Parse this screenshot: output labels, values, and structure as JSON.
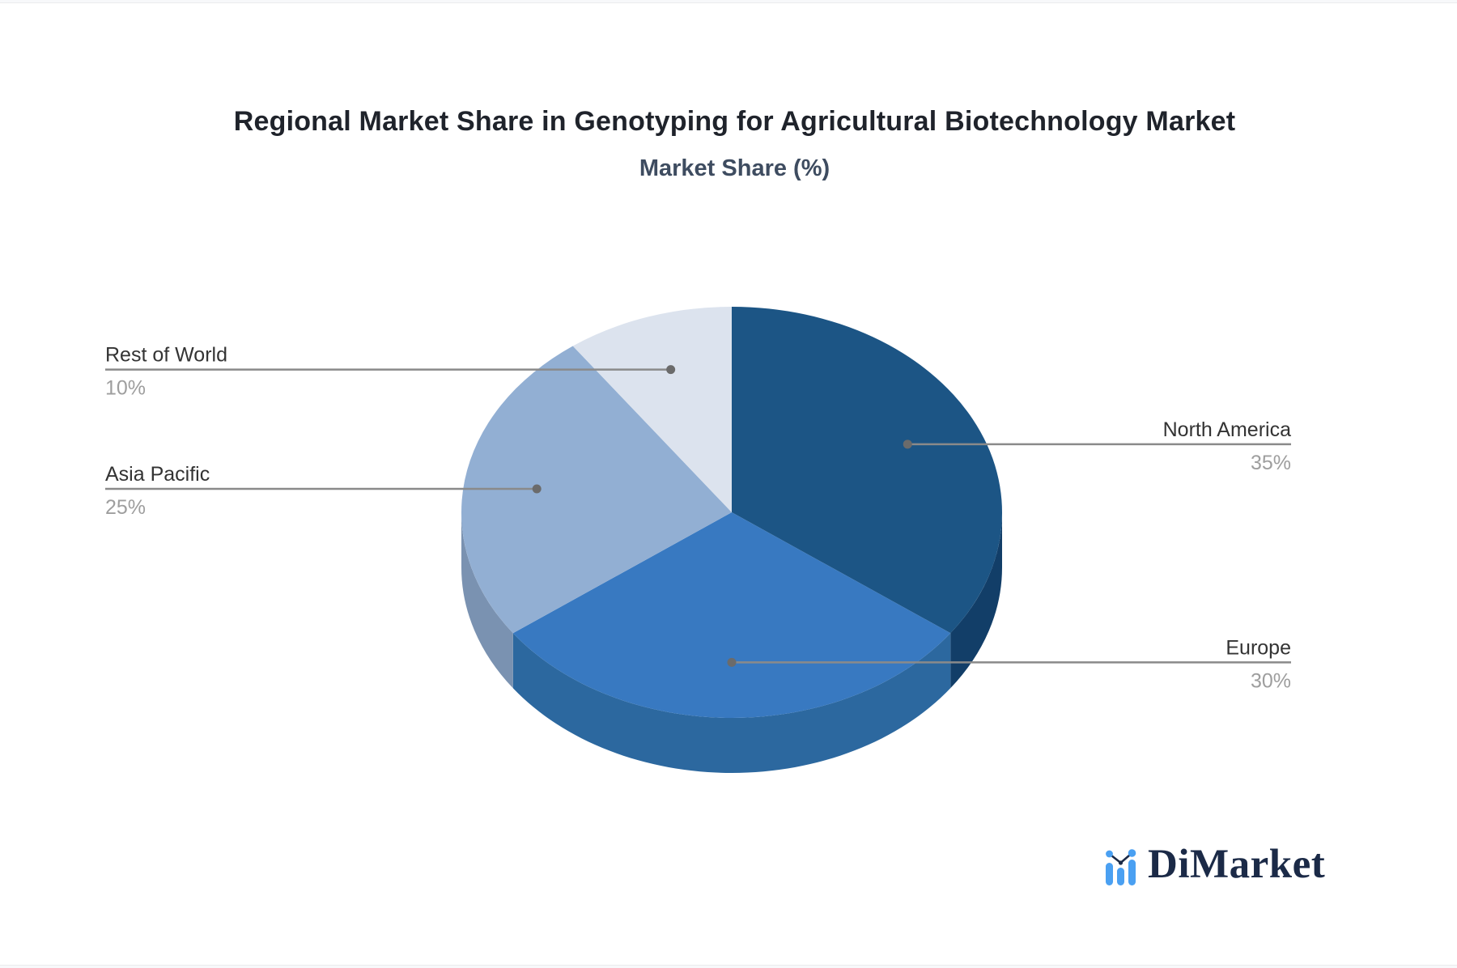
{
  "page": {
    "background": "#ffffff",
    "edge_strip_color": "#F7F8FA"
  },
  "header": {
    "title": "Regional Market Share in Genotyping for Agricultural Biotechnology Market",
    "subtitle": "Market Share (%)"
  },
  "chart_data": {
    "type": "pie",
    "title": "Regional Market Share in Genotyping for Agricultural Biotechnology Market",
    "subtitle": "Market Share (%)",
    "unit": "%",
    "effect": "3d-depth",
    "start_angle_deg": 0,
    "direction": "clockwise",
    "categories": [
      "North America",
      "Europe",
      "Asia Pacific",
      "Rest of World"
    ],
    "values": [
      35,
      30,
      25,
      10
    ],
    "slices": [
      {
        "label": "North America",
        "value": 35,
        "pct_label": "35%",
        "color": "#1C5585",
        "side_color": "#123E68",
        "label_side": "right"
      },
      {
        "label": "Europe",
        "value": 30,
        "pct_label": "30%",
        "color": "#3879C1",
        "side_color": "#2C689F",
        "label_side": "right"
      },
      {
        "label": "Asia Pacific",
        "value": 25,
        "pct_label": "25%",
        "color": "#92AFD3",
        "side_color": "#7A92B1",
        "label_side": "left"
      },
      {
        "label": "Rest of World",
        "value": 10,
        "pct_label": "10%",
        "color": "#DCE3EE",
        "side_color": "#AEBACD",
        "label_side": "left"
      }
    ],
    "label_text_color": "#333333",
    "pct_text_color": "#9E9E9E",
    "leader_line_color": "#8A8A8A",
    "leader_dot_color": "#6B6B6B",
    "legend": "none"
  },
  "branding": {
    "logo_text": "DiMarket",
    "logo_icon": "bar-chart-with-trend-dots",
    "logo_text_color": "#1B2A47",
    "logo_icon_color": "#4AA0F2"
  }
}
